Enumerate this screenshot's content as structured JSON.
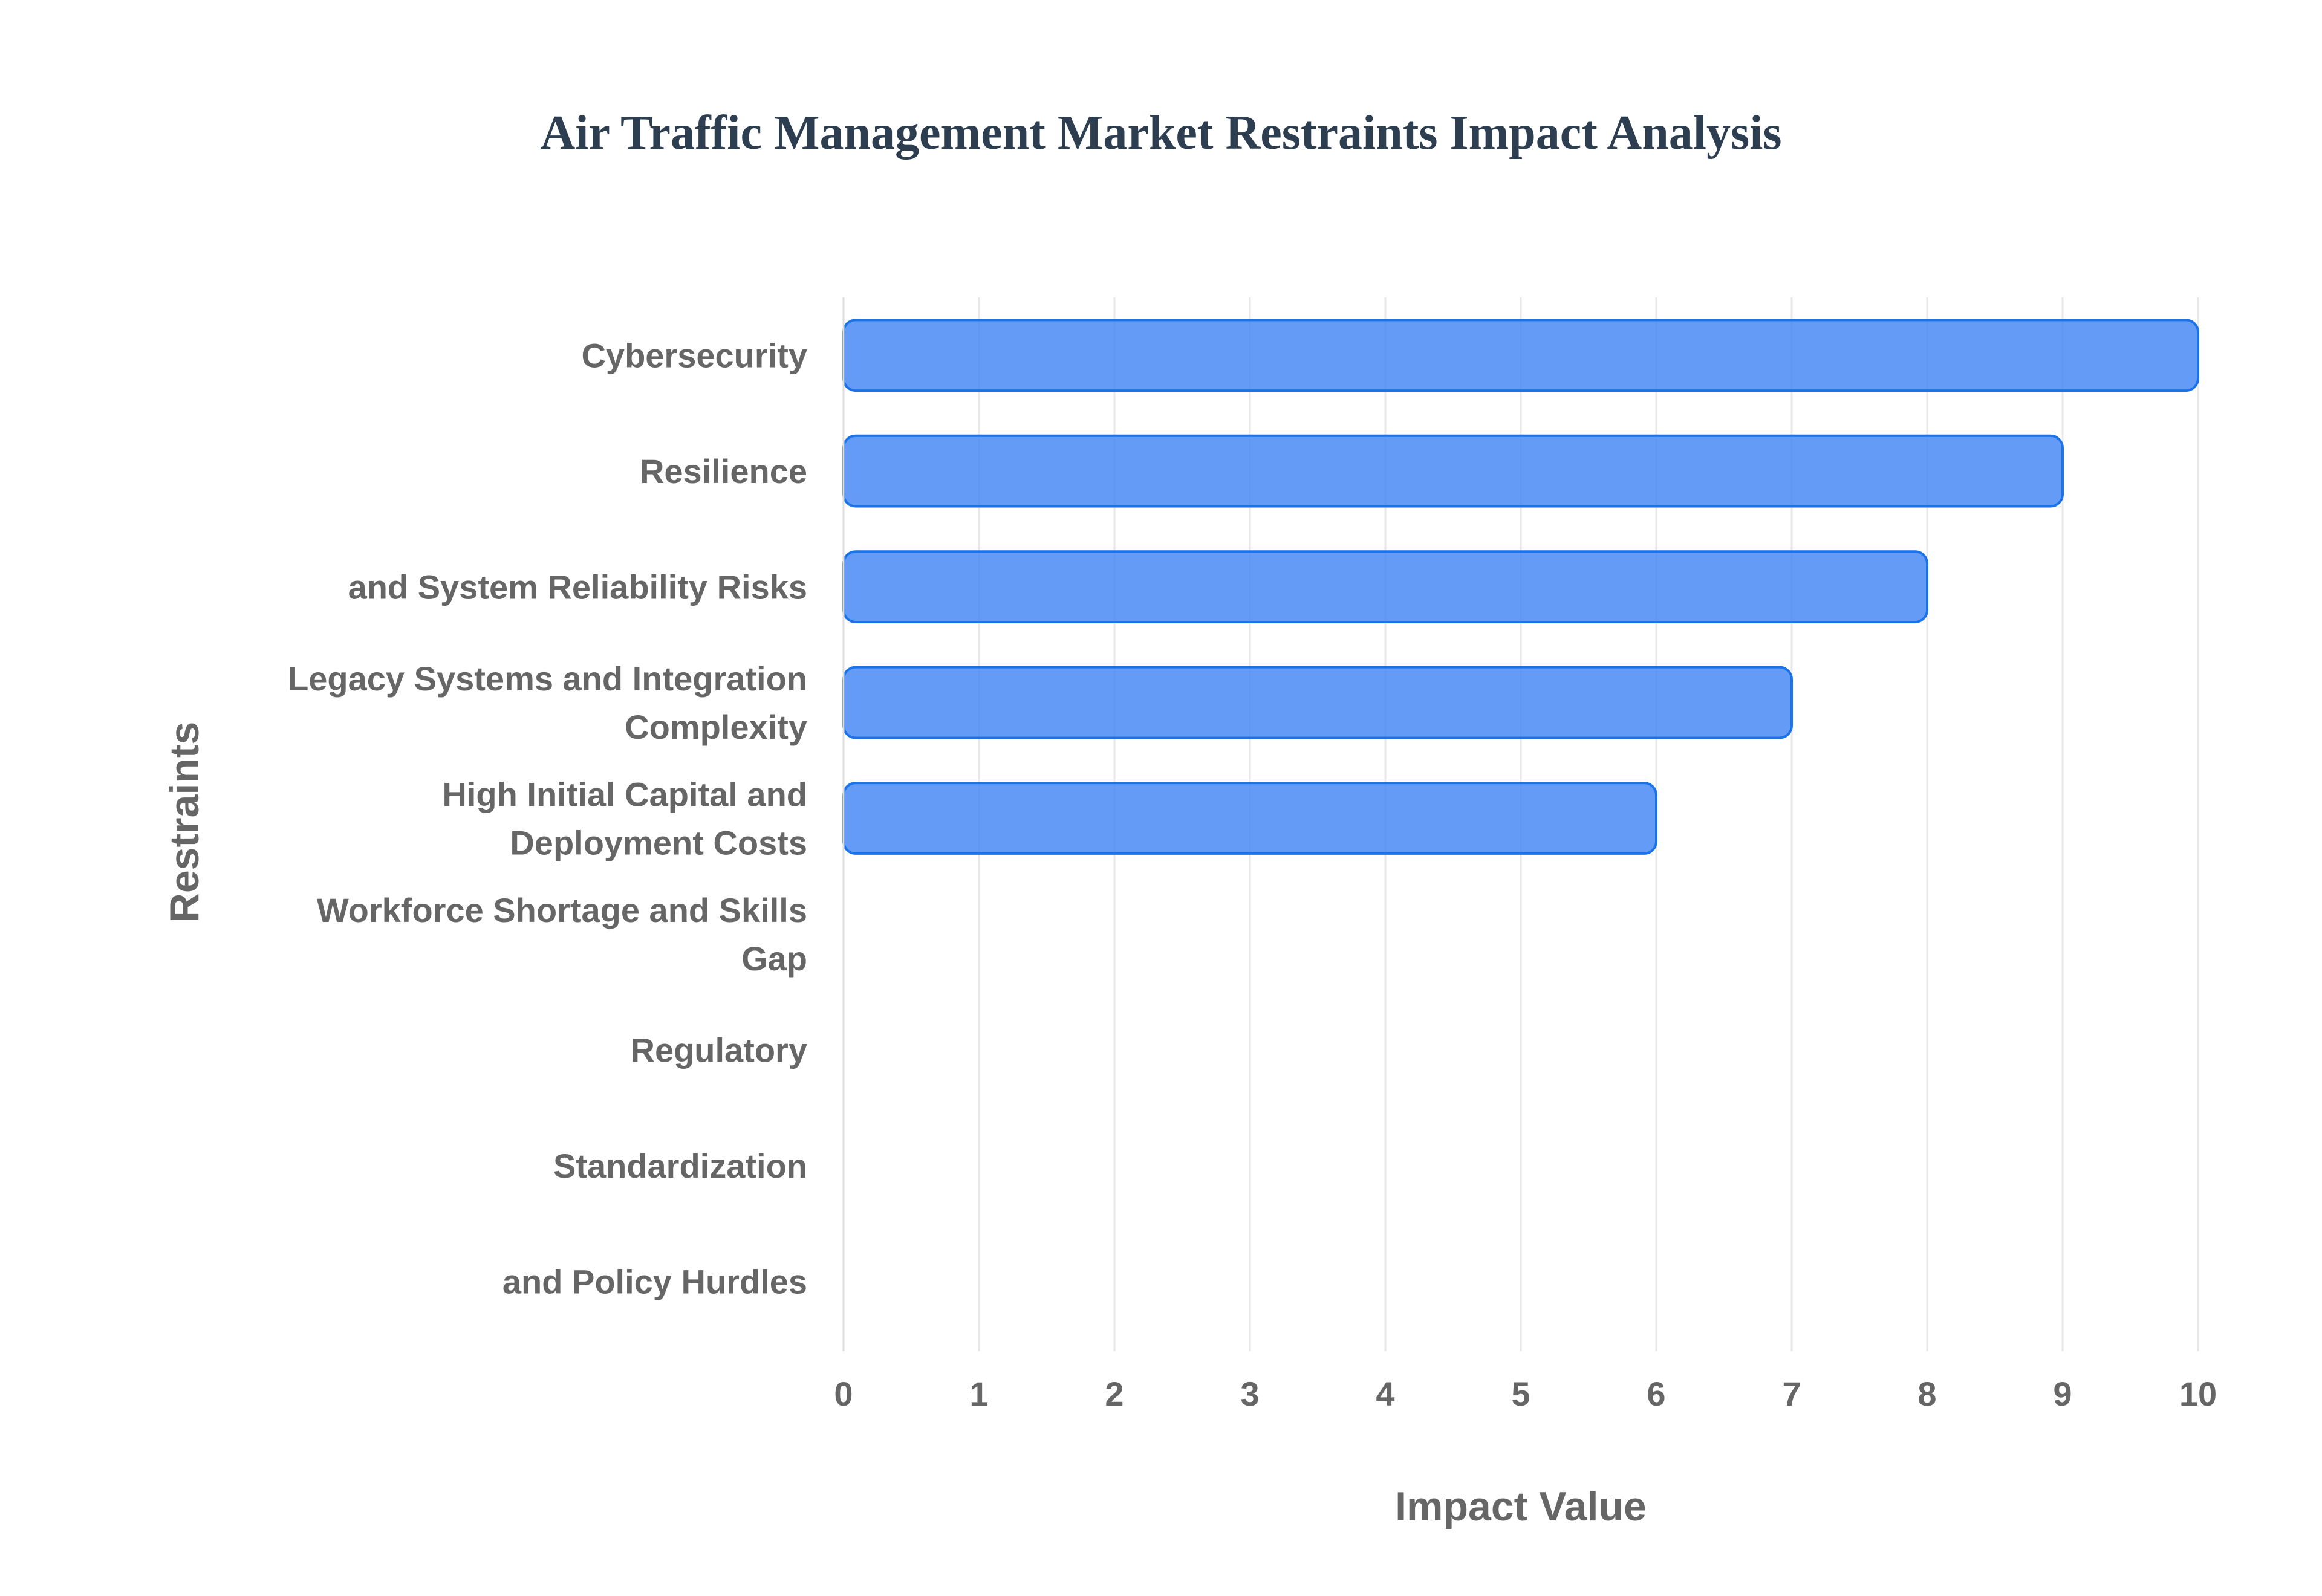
{
  "chart_data": {
    "type": "bar",
    "orientation": "horizontal",
    "title": "Air Traffic Management Market Restraints Impact Analysis",
    "xlabel": "Impact Value",
    "ylabel": "Restraints",
    "categories": [
      [
        "Cybersecurity"
      ],
      [
        "Resilience"
      ],
      [
        "and System Reliability Risks"
      ],
      [
        "Legacy Systems and Integration",
        "Complexity"
      ],
      [
        "High Initial Capital and",
        "Deployment Costs"
      ],
      [
        "Workforce Shortage and Skills",
        "Gap"
      ],
      [
        "Regulatory"
      ],
      [
        "Standardization"
      ],
      [
        "and Policy Hurdles"
      ]
    ],
    "values": [
      10,
      9,
      8,
      7,
      6,
      null,
      null,
      null,
      null
    ],
    "xlim": [
      0,
      10
    ],
    "xticks": [
      "0",
      "1",
      "2",
      "3",
      "4",
      "5",
      "6",
      "7",
      "8",
      "9",
      "10"
    ],
    "grid": true,
    "colors": {
      "bar_fill": "#4285f4",
      "bar_stroke": "#1a73e8",
      "grid": "#e8e8e8",
      "axis": "#dddddd",
      "text": "#666666",
      "title": "#2c3e50"
    }
  }
}
